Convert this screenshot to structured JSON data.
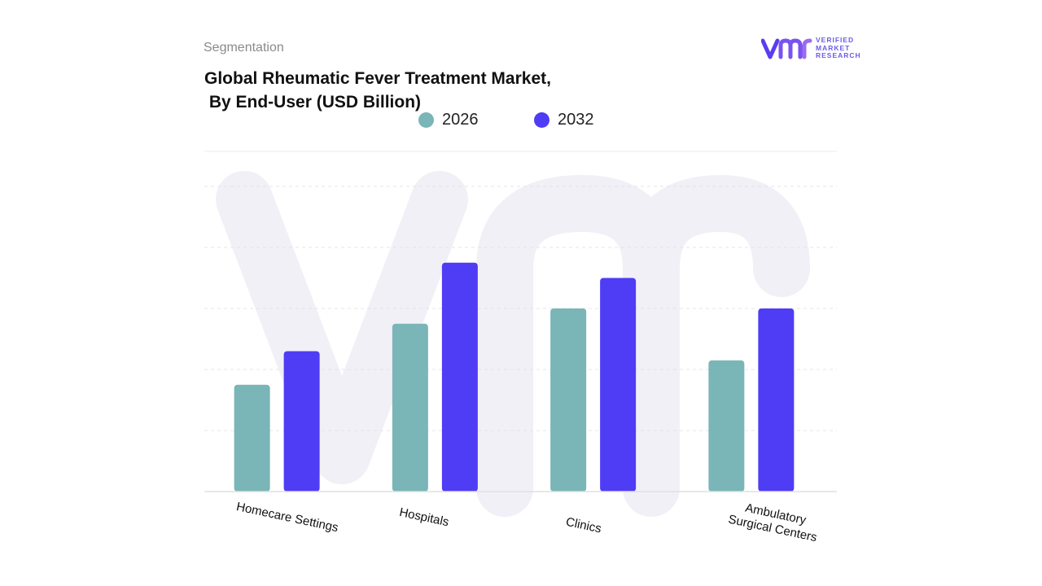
{
  "header": {
    "segment_label": "Segmentation",
    "title_line1": "Global Rheumatic Fever Treatment Market,",
    "title_line2": " By End-User (USD Billion)"
  },
  "logo": {
    "mark": "vmr",
    "text_line1": "VERIFIED",
    "text_line2": "MARKET",
    "text_line3": "RESEARCH",
    "icon": "vmr-logo-icon"
  },
  "colors": {
    "series_2026": "#7ab5b7",
    "series_2032": "#4f3cf5",
    "grid": "#e4e4e4",
    "watermark": "#f1f0f7"
  },
  "legend": {
    "items": [
      {
        "label": "2026",
        "color": "#7ab5b7"
      },
      {
        "label": "2032",
        "color": "#4f3cf5"
      }
    ],
    "placement": "top-center"
  },
  "chart_data": {
    "type": "bar",
    "title": "Global Rheumatic Fever Treatment Market, By End-User (USD Billion)",
    "categories": [
      "Homecare Settings",
      "Hospitals",
      "Clinics",
      "Ambulatory Surgical Centers"
    ],
    "series": [
      {
        "name": "2026",
        "values": [
          1.75,
          2.75,
          3.0,
          2.15
        ]
      },
      {
        "name": "2032",
        "values": [
          2.3,
          3.75,
          3.5,
          3.0
        ]
      }
    ],
    "xlabel": "",
    "ylabel": "",
    "ylim": [
      0,
      5
    ],
    "grid": true,
    "y_tick_labels_shown": false
  }
}
